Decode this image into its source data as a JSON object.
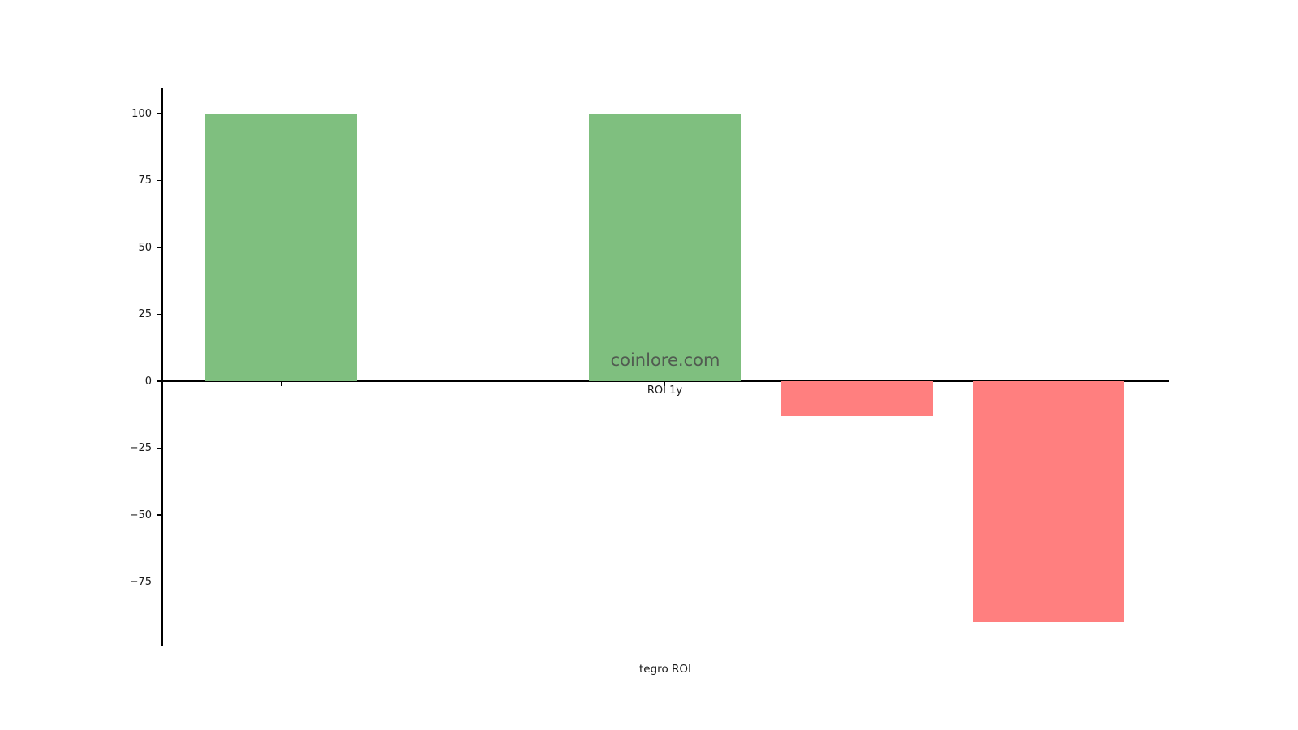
{
  "watermark": "coinlore.com",
  "chart_data": {
    "type": "bar",
    "title": "",
    "xlabel": "tegro ROI",
    "ylabel": "",
    "categories": [
      "",
      "",
      "ROI 1y",
      "",
      ""
    ],
    "values": [
      100,
      0,
      100,
      -13,
      -90
    ],
    "y_ticks": [
      100,
      75,
      50,
      25,
      0,
      -25,
      -50,
      -75
    ],
    "y_tick_labels": [
      "100",
      "75",
      "50",
      "25",
      "0",
      "−25",
      "−50",
      "−75"
    ],
    "ylim": [
      -100,
      110
    ],
    "x_tick_mark_indices": [
      0,
      2
    ],
    "grid": false,
    "legend": false,
    "colors": {
      "positive": "#7fbf7f",
      "negative": "#ff7f7f",
      "axis": "#000000",
      "text": "#1a1a1a",
      "watermark": "#4a4a4a"
    }
  }
}
